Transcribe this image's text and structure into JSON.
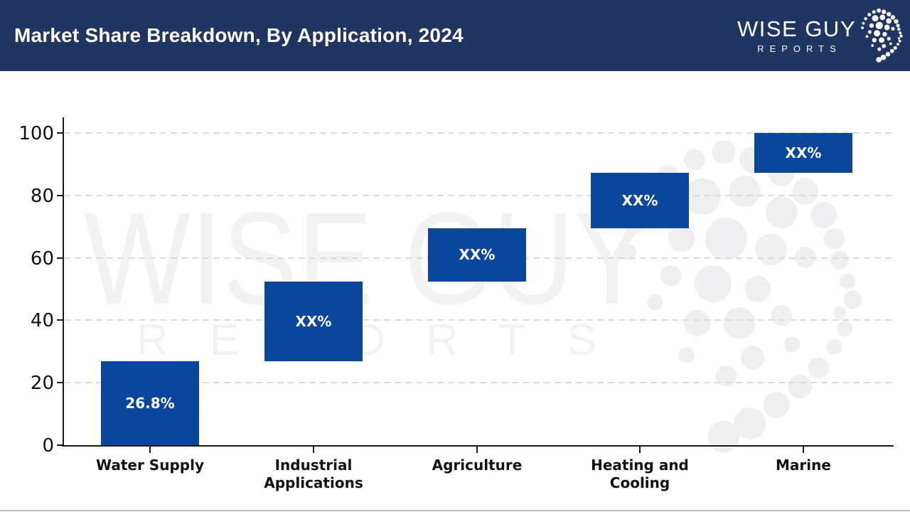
{
  "header": {
    "title": "Market Share Breakdown, By Application, 2024",
    "bg_color": "#203561",
    "logo": {
      "line1": "WISE GUY",
      "line2": "REPORTS"
    }
  },
  "watermark": {
    "line1": "WISE GUY",
    "line2": "REPORTS"
  },
  "chart_data": {
    "type": "bar",
    "subtype": "waterfall",
    "title": "Market Share Breakdown, By Application, 2024",
    "categories": [
      "Water Supply",
      "Industrial Applications",
      "Agriculture",
      "Heating and Cooling",
      "Marine"
    ],
    "segments": [
      {
        "category": "Water Supply",
        "start": 0,
        "end": 26.8,
        "label": "26.8%"
      },
      {
        "category": "Industrial Applications",
        "start": 26.8,
        "end": 52.5,
        "label": "XX%"
      },
      {
        "category": "Agriculture",
        "start": 52.5,
        "end": 69.5,
        "label": "XX%"
      },
      {
        "category": "Heating and Cooling",
        "start": 69.5,
        "end": 87.3,
        "label": "XX%"
      },
      {
        "category": "Marine",
        "start": 87.3,
        "end": 100,
        "label": "XX%"
      }
    ],
    "xlabel": "",
    "ylabel": "",
    "yticks": [
      0,
      20,
      40,
      60,
      80,
      100
    ],
    "ylim": [
      0,
      105
    ],
    "grid": "dashed-horizontal",
    "legend": "none",
    "bar_color": "#0a479c",
    "bar_label_color": "#ffffff",
    "axis_color": "#1a1a1a",
    "grid_color": "#dcdcdc"
  }
}
